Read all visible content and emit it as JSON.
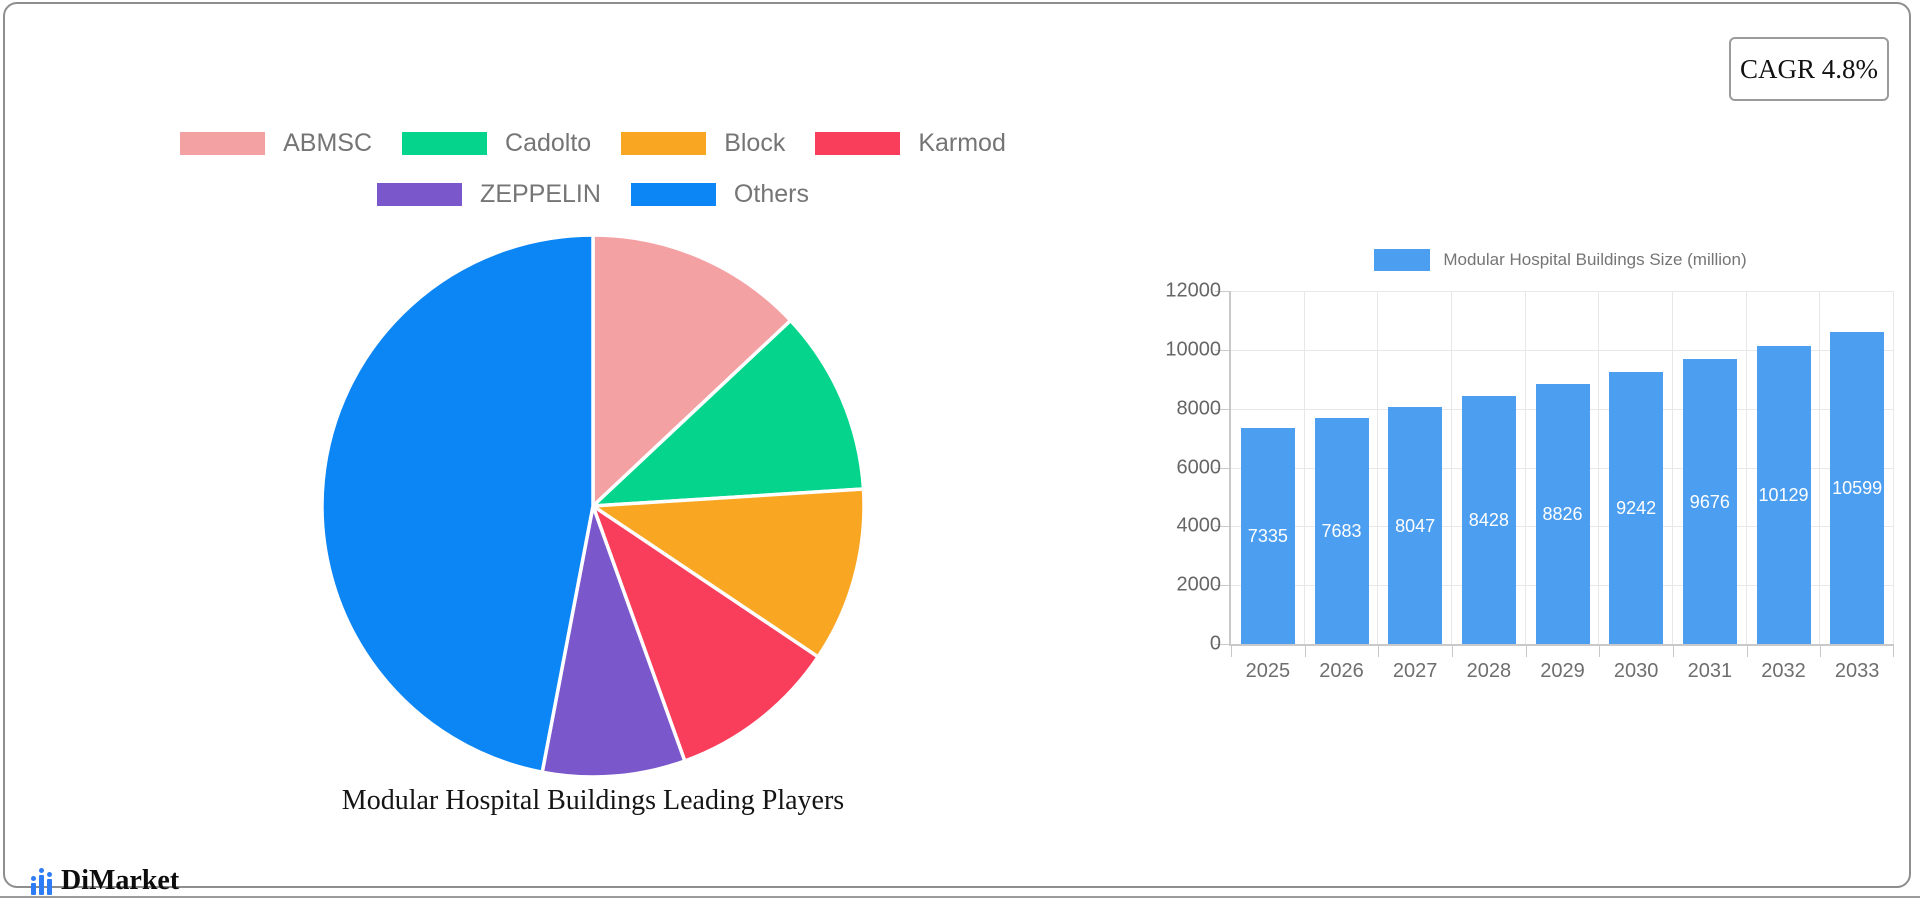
{
  "page": {
    "cagr_badge": "CAGR 4.8%",
    "brand": "DiMarket"
  },
  "chart_data": [
    {
      "type": "pie",
      "title": "Modular Hospital Buildings Leading Players",
      "labels": [
        "ABMSC",
        "Cadolto",
        "Block",
        "Karmod",
        "ZEPPELIN",
        "Others"
      ],
      "values": [
        13,
        11,
        10.4,
        10.1,
        8.5,
        47
      ],
      "unit": "percent-of-circle (estimated from slice angles)",
      "colors": [
        "#F4A1A4",
        "#04D48C",
        "#F9A622",
        "#F93E5C",
        "#7A57CB",
        "#0C86F5"
      ],
      "legend_position": "top",
      "legend_rows": [
        [
          0,
          1,
          2,
          3
        ],
        [
          4,
          5
        ]
      ],
      "start_angle_deg": 0,
      "direction": "clockwise"
    },
    {
      "type": "bar",
      "title": "Modular Hospital Buildings Size (million)",
      "legend_label": "Modular Hospital Buildings Size (million)",
      "categories": [
        "2025",
        "2026",
        "2027",
        "2028",
        "2029",
        "2030",
        "2031",
        "2032",
        "2033"
      ],
      "values": [
        7335,
        7683,
        8047,
        8428,
        8826,
        9242,
        9676,
        10129,
        10599
      ],
      "bar_color": "#4C9EF0",
      "value_label_color": "#ffffff",
      "xlabel": "",
      "ylabel": "",
      "ylim": [
        0,
        12000
      ],
      "y_ticks": [
        0,
        2000,
        4000,
        6000,
        8000,
        10000,
        12000
      ],
      "grid": true,
      "legend_position": "top",
      "annotation": "CAGR 4.8%"
    }
  ]
}
